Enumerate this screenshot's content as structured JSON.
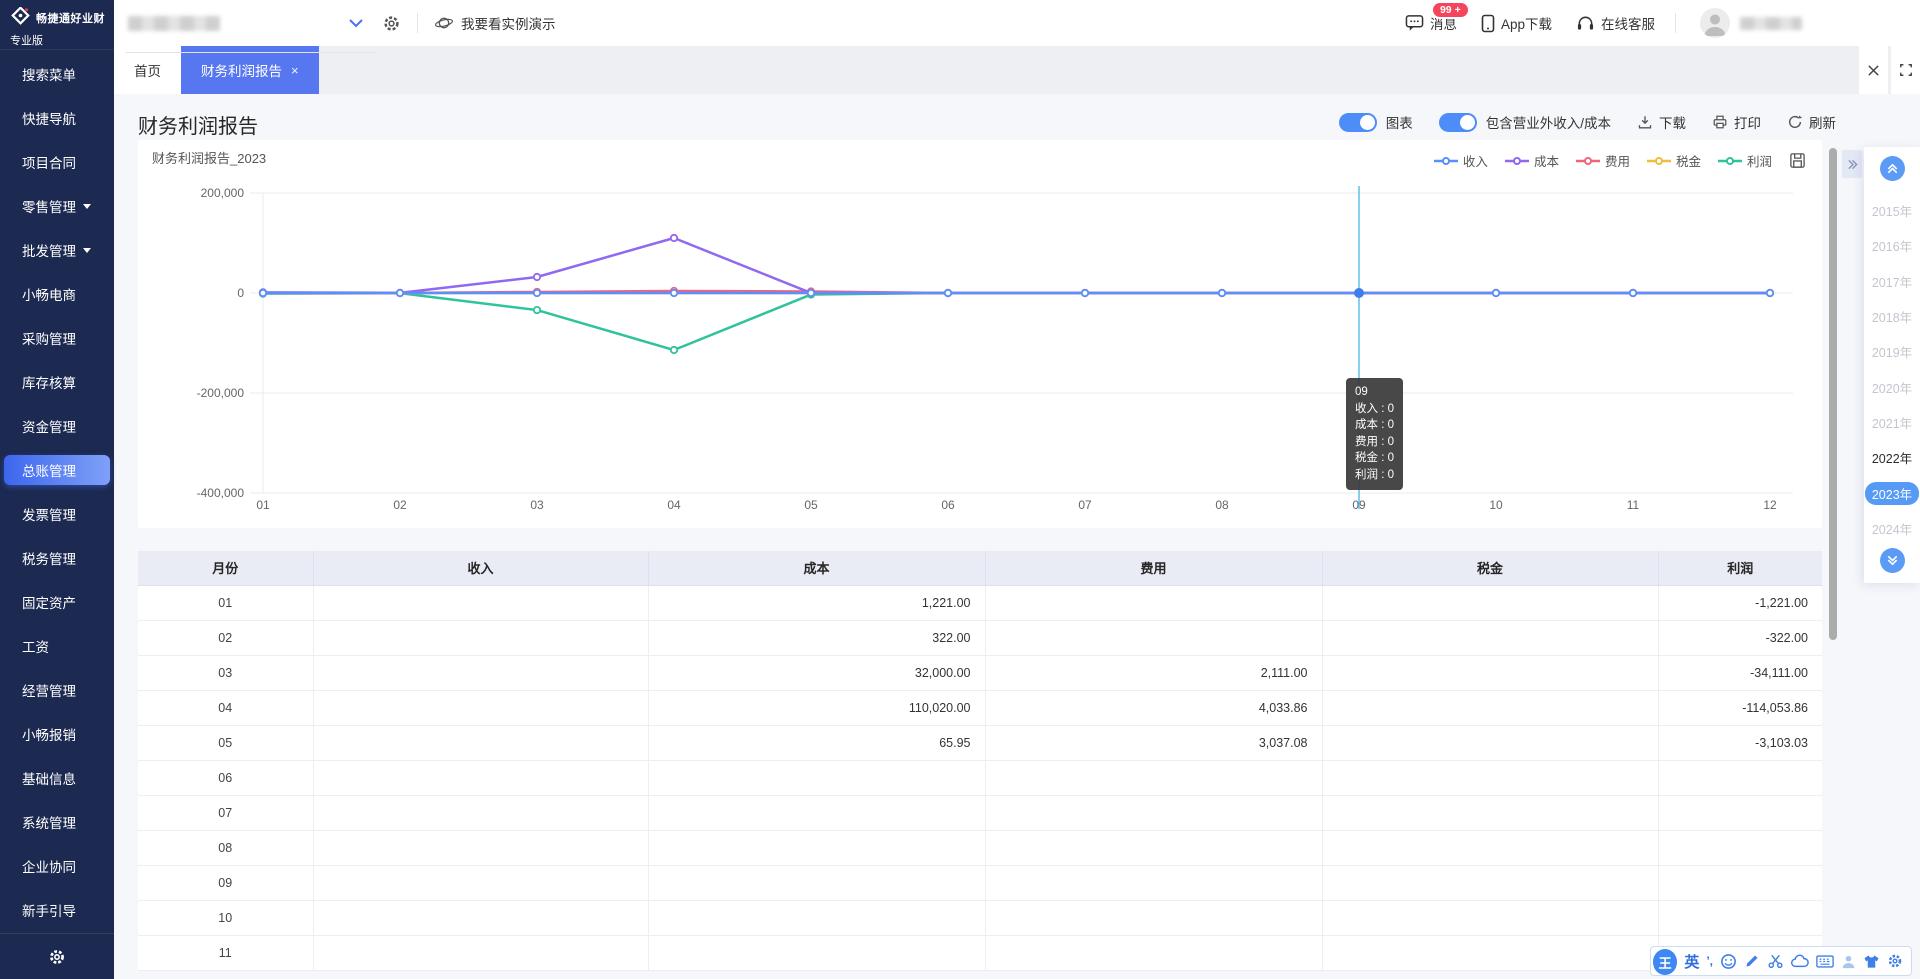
{
  "app": {
    "brand": "畅捷通好业财",
    "edition": "专业版"
  },
  "topbar": {
    "demo_label": "我要看实例演示",
    "messages_label": "消息",
    "messages_badge": "99 +",
    "app_download_label": "App下载",
    "support_label": "在线客服"
  },
  "tabs": [
    {
      "label": "首页",
      "active": false,
      "closable": false
    },
    {
      "label": "财务利润报告",
      "active": true,
      "closable": true
    }
  ],
  "tabbar_buttons": {
    "close": "×"
  },
  "sidebar": {
    "items": [
      {
        "label": "搜索菜单"
      },
      {
        "label": "快捷导航"
      },
      {
        "label": "项目合同"
      },
      {
        "label": "零售管理",
        "caret": true
      },
      {
        "label": "批发管理",
        "caret": true
      },
      {
        "label": "小畅电商"
      },
      {
        "label": "采购管理"
      },
      {
        "label": "库存核算"
      },
      {
        "label": "资金管理"
      },
      {
        "label": "总账管理",
        "active": true
      },
      {
        "label": "发票管理"
      },
      {
        "label": "税务管理"
      },
      {
        "label": "固定资产"
      },
      {
        "label": "工资"
      },
      {
        "label": "经营管理"
      },
      {
        "label": "小畅报销"
      },
      {
        "label": "基础信息"
      },
      {
        "label": "系统管理"
      },
      {
        "label": "企业协同"
      },
      {
        "label": "新手引导"
      }
    ]
  },
  "page": {
    "title": "财务利润报告",
    "toggles": [
      {
        "label": "图表",
        "on": true
      },
      {
        "label": "包含营业外收入/成本",
        "on": true
      }
    ],
    "actions": [
      {
        "label": "下载",
        "icon": "download-icon"
      },
      {
        "label": "打印",
        "icon": "printer-icon"
      },
      {
        "label": "刷新",
        "icon": "refresh-icon"
      }
    ]
  },
  "chart_data": {
    "type": "line",
    "title": "财务利润报告_2023",
    "categories": [
      "01",
      "02",
      "03",
      "04",
      "05",
      "06",
      "07",
      "08",
      "09",
      "10",
      "11",
      "12"
    ],
    "series": [
      {
        "name": "收入",
        "color": "#5B8FF9",
        "values": [
          0,
          0,
          0,
          0,
          0,
          0,
          0,
          0,
          0,
          0,
          0,
          0
        ]
      },
      {
        "name": "成本",
        "color": "#9168F0",
        "values": [
          1221,
          322,
          32000,
          110020,
          65.95,
          0,
          0,
          0,
          0,
          0,
          0,
          0
        ]
      },
      {
        "name": "费用",
        "color": "#F2637E",
        "values": [
          0,
          0,
          2111,
          4033.86,
          3037.08,
          0,
          0,
          0,
          0,
          0,
          0,
          0
        ]
      },
      {
        "name": "税金",
        "color": "#F0BE3C",
        "values": [
          0,
          0,
          0,
          0,
          0,
          0,
          0,
          0,
          0,
          0,
          0,
          0
        ]
      },
      {
        "name": "利润",
        "color": "#2FC39B",
        "values": [
          -1221,
          -322,
          -34111,
          -114053.86,
          -3103.03,
          0,
          0,
          0,
          0,
          0,
          0,
          0
        ]
      }
    ],
    "ylim": [
      -400000,
      200000
    ],
    "yticks": [
      {
        "v": 200000,
        "label": "200,000"
      },
      {
        "v": 0,
        "label": "0"
      },
      {
        "v": -200000,
        "label": "-200,000"
      },
      {
        "v": -400000,
        "label": "-400,000"
      }
    ],
    "grid": true,
    "legend_position": "top-right",
    "highlight_index": 8,
    "tooltip": {
      "month": "09",
      "rows": [
        {
          "label": "收入",
          "value": "0"
        },
        {
          "label": "成本",
          "value": "0"
        },
        {
          "label": "费用",
          "value": "0"
        },
        {
          "label": "税金",
          "value": "0"
        },
        {
          "label": "利润",
          "value": "0"
        }
      ]
    }
  },
  "year_panel": {
    "years": [
      {
        "label": "2015年",
        "state": "dim"
      },
      {
        "label": "2016年",
        "state": "dim"
      },
      {
        "label": "2017年",
        "state": "dim"
      },
      {
        "label": "2018年",
        "state": "dim"
      },
      {
        "label": "2019年",
        "state": "dim"
      },
      {
        "label": "2020年",
        "state": "dim"
      },
      {
        "label": "2021年",
        "state": "dim"
      },
      {
        "label": "2022年",
        "state": "normal"
      },
      {
        "label": "2023年",
        "state": "selected"
      },
      {
        "label": "2024年",
        "state": "dim"
      }
    ]
  },
  "table": {
    "headers": [
      "月份",
      "收入",
      "成本",
      "费用",
      "税金",
      "利润"
    ],
    "rows": [
      [
        "01",
        "",
        "1,221.00",
        "",
        "",
        "-1,221.00"
      ],
      [
        "02",
        "",
        "322.00",
        "",
        "",
        "-322.00"
      ],
      [
        "03",
        "",
        "32,000.00",
        "2,111.00",
        "",
        "-34,111.00"
      ],
      [
        "04",
        "",
        "110,020.00",
        "4,033.86",
        "",
        "-114,053.86"
      ],
      [
        "05",
        "",
        "65.95",
        "3,037.08",
        "",
        "-3,103.03"
      ],
      [
        "06",
        "",
        "",
        "",
        "",
        ""
      ],
      [
        "07",
        "",
        "",
        "",
        "",
        ""
      ],
      [
        "08",
        "",
        "",
        "",
        "",
        ""
      ],
      [
        "09",
        "",
        "",
        "",
        "",
        ""
      ],
      [
        "10",
        "",
        "",
        "",
        "",
        ""
      ],
      [
        "11",
        "",
        "",
        "",
        "",
        ""
      ]
    ]
  },
  "ime": {
    "primary": "王",
    "mode": "英",
    "punct": "’,"
  }
}
